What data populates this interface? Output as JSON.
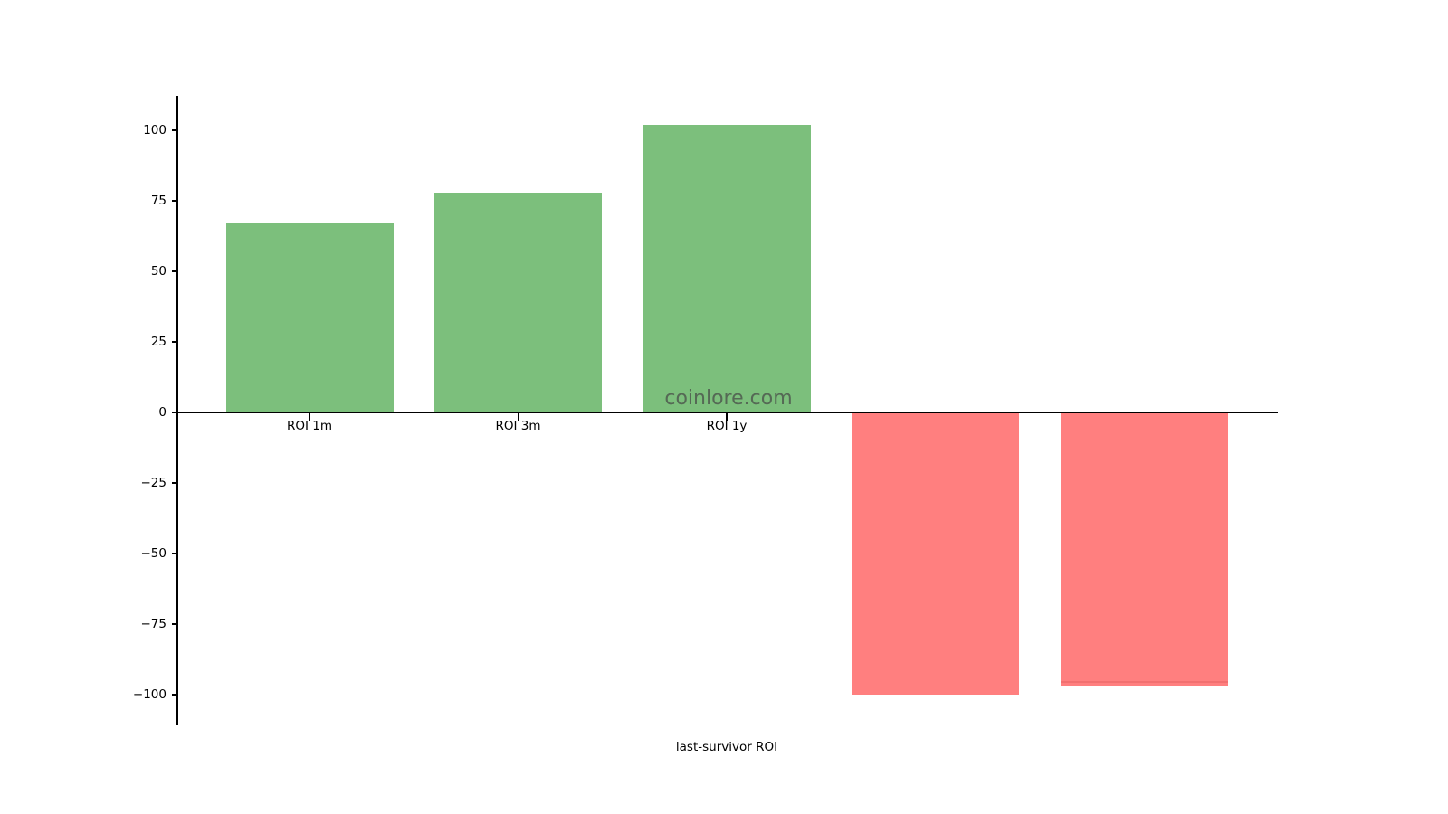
{
  "watermark": "coinlore.com",
  "chart_data": {
    "type": "bar",
    "title": "",
    "xlabel": "last-survivor ROI",
    "ylabel": "",
    "categories": [
      "ROI 1m",
      "ROI 3m",
      "ROI 1y",
      "",
      ""
    ],
    "values": [
      67,
      78,
      102,
      -100,
      -97
    ],
    "positive_color": "#7cbf7c",
    "negative_color": "#ff7f7f",
    "axis_color": "#000000",
    "grid": false,
    "legend": false,
    "ylim": [
      -111,
      112
    ],
    "y_ticks": [
      {
        "value": 100,
        "label": "100"
      },
      {
        "value": 75,
        "label": "75"
      },
      {
        "value": 50,
        "label": "50"
      },
      {
        "value": 25,
        "label": "25"
      },
      {
        "value": 0,
        "label": "0"
      },
      {
        "value": -25,
        "label": "−25"
      },
      {
        "value": -50,
        "label": "−50"
      },
      {
        "value": -75,
        "label": "−75"
      },
      {
        "value": -100,
        "label": "−100"
      }
    ],
    "annotations": [
      {
        "type": "overlap-edge-line",
        "bar_index": 4,
        "value": -95.3,
        "color": "#f27070"
      }
    ]
  }
}
